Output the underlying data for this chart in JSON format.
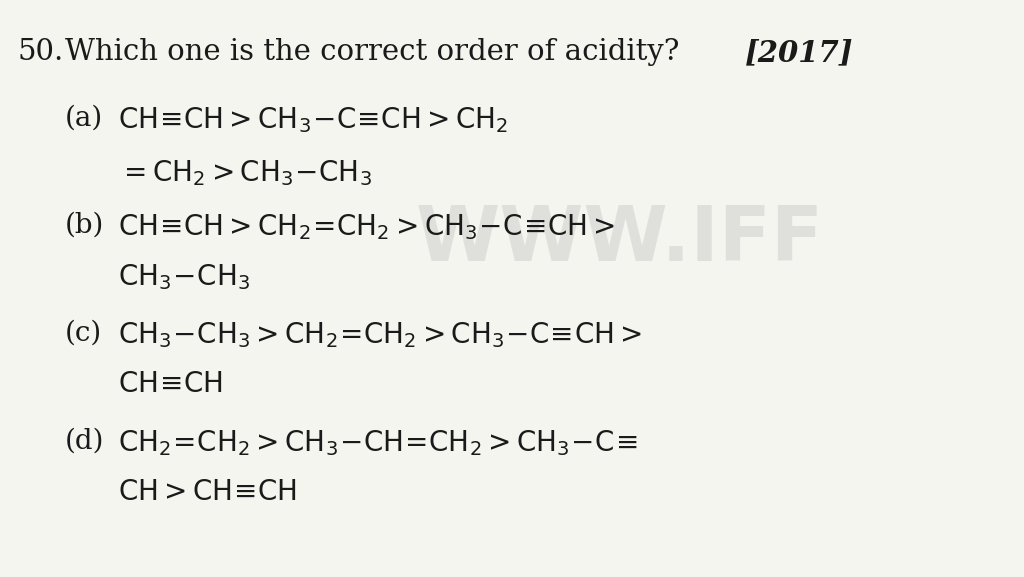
{
  "bg_color": "#f5f5f0",
  "text_color": "#1a1a1a",
  "watermark_color": "#c0c0c0",
  "question_number": "50.",
  "year_tag": "[2017]",
  "font_size_q": 21,
  "font_size_opt": 20,
  "font_size_wm": 55,
  "options": [
    {
      "label": "(a)",
      "line1": "$\\mathrm{CH\\!\\equiv\\!CH > CH_3\\!-\\!C\\!\\equiv\\!CH > CH_2}$",
      "line2": "$\\mathrm{=CH_2 > CH_3\\!-\\!CH_3}$"
    },
    {
      "label": "(b)",
      "line1": "$\\mathrm{CH\\!\\equiv\\!CH > CH_2\\!=\\!CH_2 > CH_3\\!-\\!C\\!\\equiv\\!CH >}$",
      "line2": "$\\mathrm{CH_3\\!-\\!CH_3}$"
    },
    {
      "label": "(c)",
      "line1": "$\\mathrm{CH_3\\!-\\!CH_3 > CH_2\\!=\\!CH_2 > CH_3\\!-\\!C\\!\\equiv\\!CH >}$",
      "line2": "$\\mathrm{CH\\!\\equiv\\!CH}$"
    },
    {
      "label": "(d)",
      "line1": "$\\mathrm{CH_2\\!=\\!CH_2 > CH_3\\!-\\!CH\\!=\\!CH_2 > CH_3\\!-\\!C\\!\\equiv}$",
      "line2": "$\\mathrm{CH > CH\\!\\equiv\\!CH}$"
    }
  ]
}
